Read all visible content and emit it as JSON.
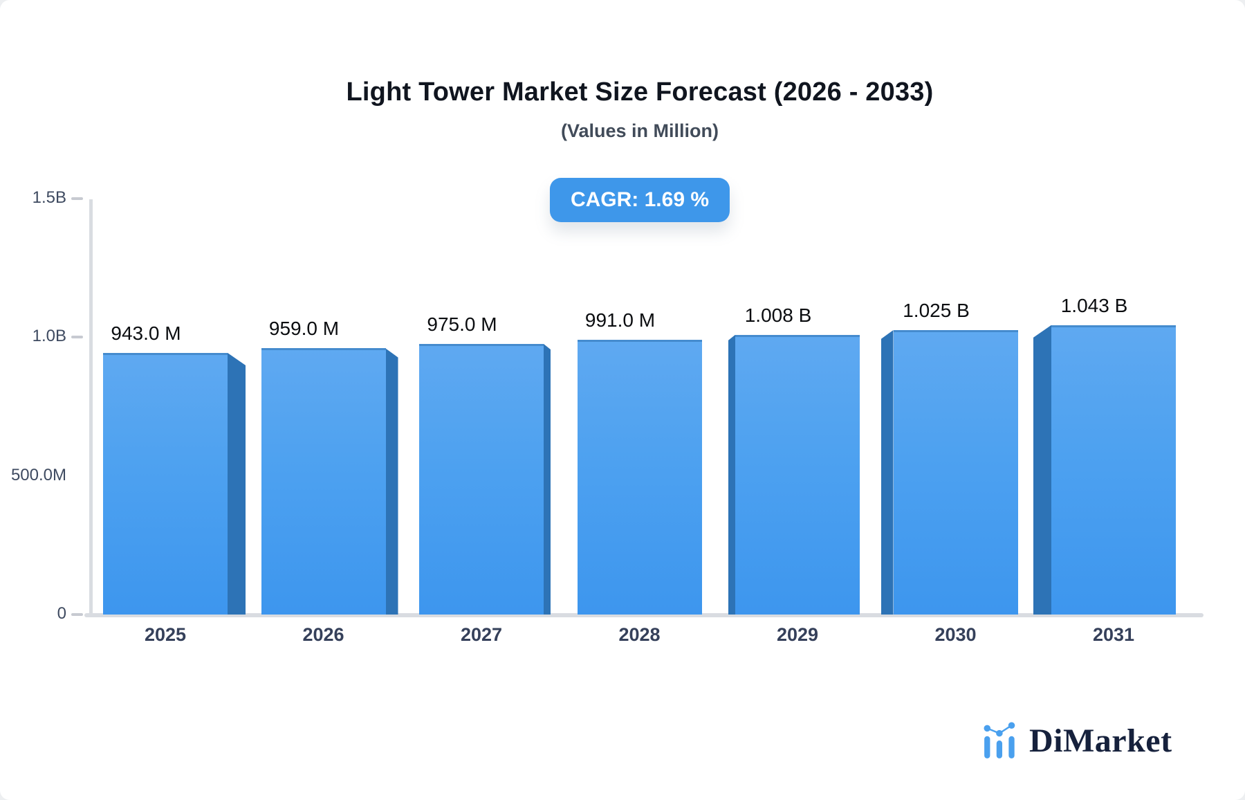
{
  "title": "Light Tower Market Size Forecast (2026 - 2033)",
  "subtitle": "(Values in Million)",
  "badge": {
    "label": "CAGR: 1.69 %"
  },
  "logo": {
    "text": "DiMarket",
    "icon": "mini-bar-chart-icon"
  },
  "colors": {
    "bar_top": "#5fa9f1",
    "bar_bottom": "#3d96ee",
    "bar_side": "#2d73b6",
    "badge_bg": "#3e97ea",
    "axis_gray": "#d9dce1",
    "logo_blue": "#4aa0ee",
    "logo_navy": "#16213c"
  },
  "chart_data": {
    "type": "bar",
    "title": "Light Tower Market Size Forecast (2026 - 2033)",
    "subtitle": "(Values in Million)",
    "categories": [
      "2025",
      "2026",
      "2027",
      "2028",
      "2029",
      "2030",
      "2031"
    ],
    "values": [
      943,
      959,
      975,
      991,
      1008,
      1025,
      1043
    ],
    "value_labels": [
      "943.0 M",
      "959.0 M",
      "975.0 M",
      "991.0 M",
      "1.008 B",
      "1.025 B",
      "1.043 B"
    ],
    "values_unit_note": "(Values in Million)",
    "xlabel": "",
    "ylabel": "",
    "ylim": [
      0,
      1500
    ],
    "yticks": [
      {
        "label": "0",
        "value": 0,
        "tick": true
      },
      {
        "label": "500.0M",
        "value": 500,
        "tick": false
      },
      {
        "label": "1.0B",
        "value": 1000,
        "tick": true
      },
      {
        "label": "1.5B",
        "value": 1500,
        "tick": true
      }
    ],
    "grid": false,
    "legend": "none",
    "annotations": [
      "CAGR: 1.69 %"
    ]
  }
}
